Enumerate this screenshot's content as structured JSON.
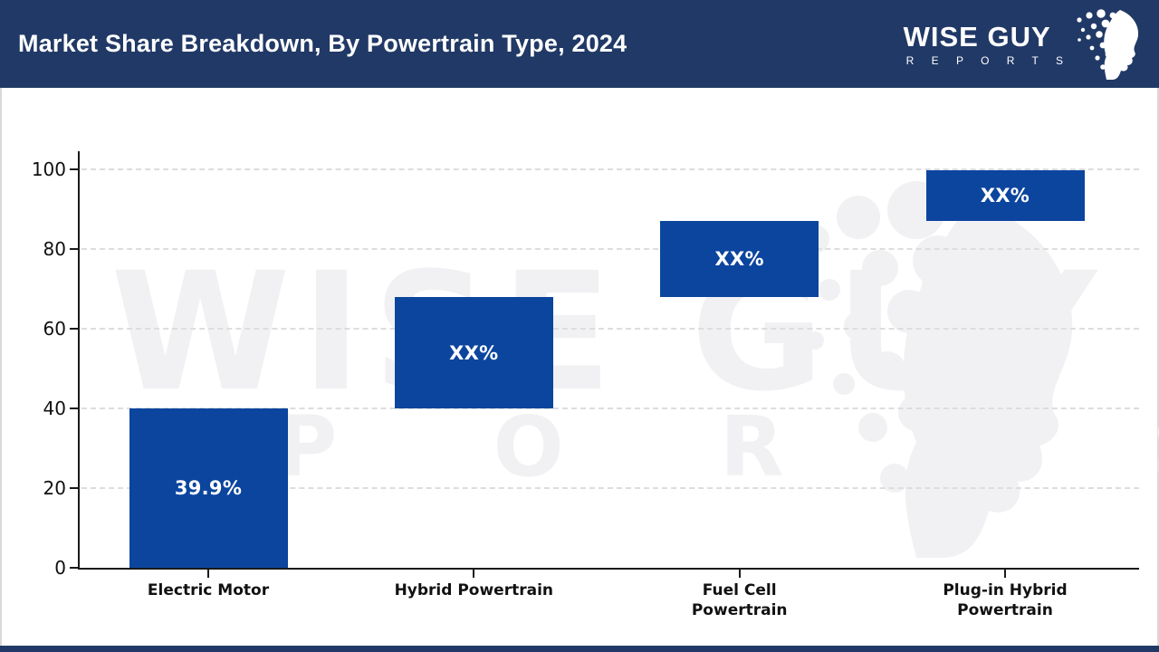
{
  "header": {
    "title": "Market Share Breakdown, By Powertrain Type, 2024",
    "bg_color": "#213966",
    "logo": {
      "wordmark": "WISE GUY",
      "subtext": "R E P O R T S"
    }
  },
  "watermark": {
    "line1": "WISE GUY",
    "line2": "P O R T S"
  },
  "chart_data": {
    "type": "bar",
    "subtype": "waterfall-stacked-segments",
    "title": "Market Share Breakdown, By Powertrain Type, 2024",
    "categories": [
      "Electric Motor",
      "Hybrid Powertrain",
      "Fuel Cell\nPowertrain",
      "Plug-in Hybrid\nPowertrain"
    ],
    "series": [
      {
        "name": "Market Share",
        "segments": [
          {
            "category": "Electric Motor",
            "start": 0,
            "end": 39.9,
            "label": "39.9%"
          },
          {
            "category": "Hybrid Powertrain",
            "start": 39.9,
            "end": 68,
            "label": "XX%"
          },
          {
            "category": "Fuel Cell Powertrain",
            "start": 68,
            "end": 87,
            "label": "XX%"
          },
          {
            "category": "Plug-in Hybrid Powertrain",
            "start": 87,
            "end": 99.7,
            "label": "XX%"
          }
        ]
      }
    ],
    "xlabel": "",
    "ylabel": "",
    "ylim": [
      0,
      100
    ],
    "yticks": [
      0,
      20,
      40,
      60,
      80,
      100
    ],
    "grid": "horizontal-dashed",
    "legend": "none",
    "bar_color": "#0c459e",
    "bar_label_color": "#ffffff",
    "axis_color": "#1a1a1a",
    "gridline_color": "#dddddd"
  }
}
